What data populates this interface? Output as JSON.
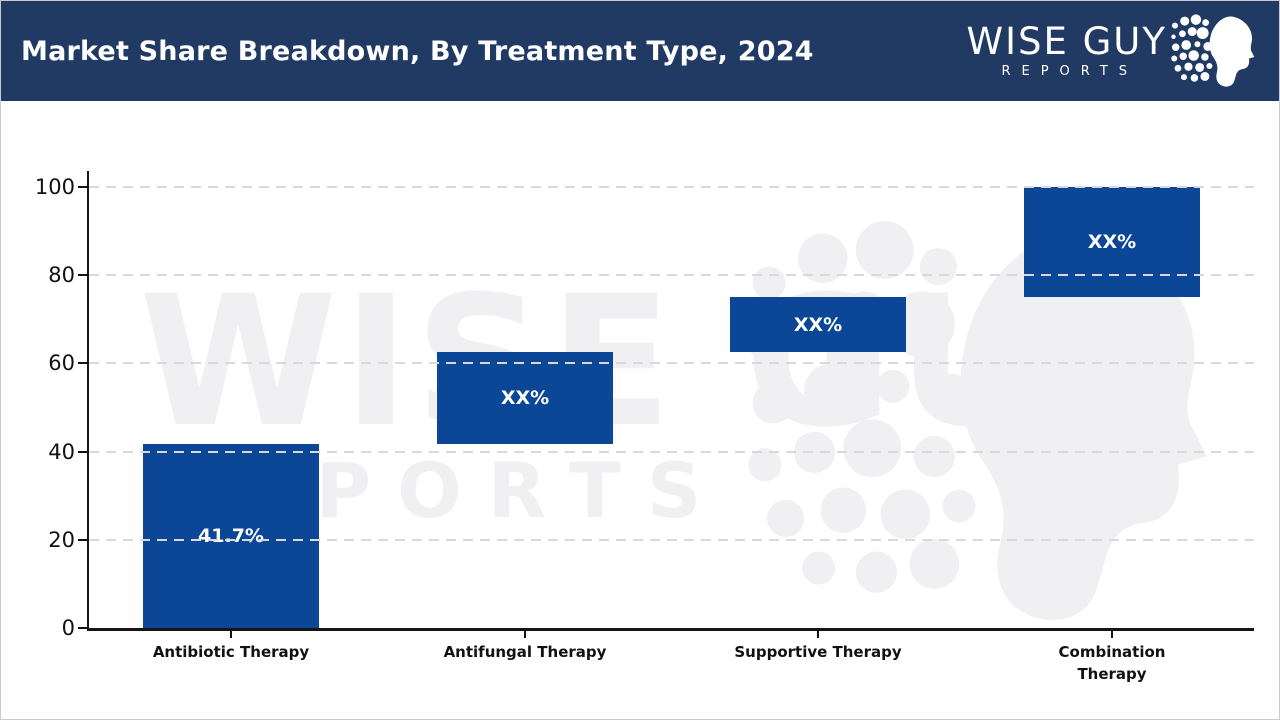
{
  "header": {
    "title": "Market Share Breakdown, By Treatment Type, 2024",
    "logo": {
      "line1": "WISE GUY",
      "line2": "REPORTS"
    }
  },
  "watermark": {
    "line1": "WISE GUY",
    "line2": "REPORTS"
  },
  "colors": {
    "header_bg": "#203A64",
    "bar": "#0B4796",
    "bar_label": "#FFFFFF",
    "grid": "#D9D9D9",
    "axis": "#151515",
    "watermark": "#F0F0F3"
  },
  "chart_data": {
    "type": "bar",
    "subtype": "waterfall",
    "title": "Market Share Breakdown, By Treatment Type, 2024",
    "categories": [
      "Antibiotic Therapy",
      "Antifungal Therapy",
      "Supportive Therapy",
      "Combination\nTherapy"
    ],
    "series": [
      {
        "name": "Market Share",
        "starts": [
          0,
          41.7,
          62.5,
          75
        ],
        "ends": [
          41.7,
          62.5,
          75,
          100
        ]
      }
    ],
    "bar_labels": [
      "41.7%",
      "XX%",
      "XX%",
      "XX%"
    ],
    "xlabel": "",
    "ylabel": "",
    "ylim": [
      0,
      100
    ],
    "yticks": [
      0,
      20,
      40,
      60,
      80,
      100
    ],
    "grid": "horizontal-dashed",
    "legend": "none"
  }
}
